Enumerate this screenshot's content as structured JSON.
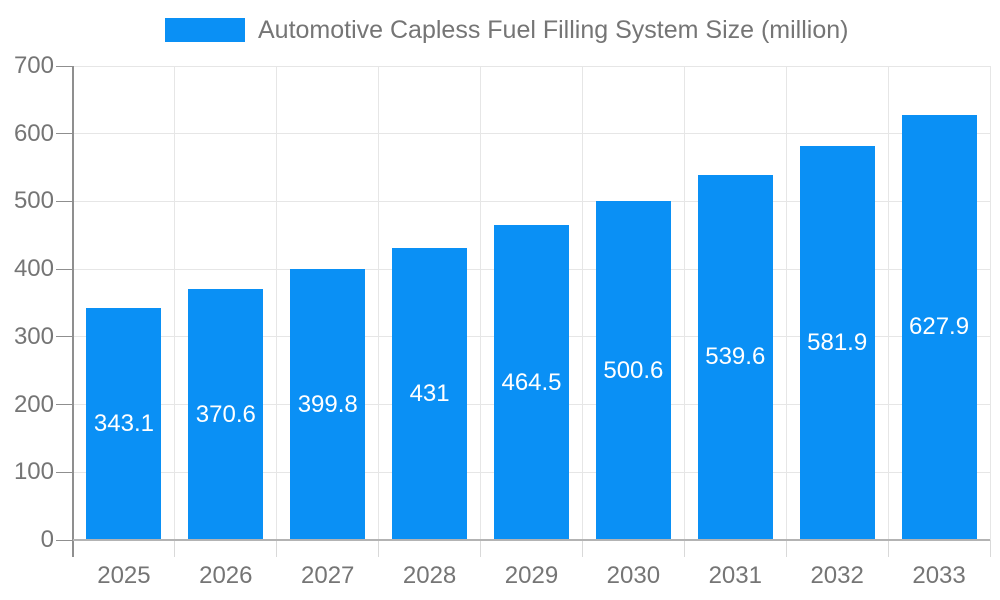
{
  "legend": {
    "label": "Automotive Capless Fuel Filling System Size (million)"
  },
  "chart_data": {
    "type": "bar",
    "title": "Automotive Capless Fuel Filling System Size (million)",
    "series_name": "Automotive Capless Fuel Filling System Size (million)",
    "categories": [
      "2025",
      "2026",
      "2027",
      "2028",
      "2029",
      "2030",
      "2031",
      "2032",
      "2033"
    ],
    "values": [
      343.1,
      370.6,
      399.8,
      431,
      464.5,
      500.6,
      539.6,
      581.9,
      627.9
    ],
    "xlabel": "",
    "ylabel": "",
    "ylim": [
      0,
      700
    ],
    "y_ticks": [
      0,
      100,
      200,
      300,
      400,
      500,
      600,
      700
    ],
    "grid": true,
    "legend_position": "top",
    "value_labels": "inside-center",
    "colors": {
      "bar": "#0a90f5",
      "value_label": "#ffffff",
      "axis_text": "#757575",
      "grid_line": "#e6e6e6",
      "axis_line_y": "#8f8f8f",
      "axis_line_x": "#b3b3b3",
      "x_tick": "#d9d9d9",
      "background": "#ffffff"
    }
  }
}
